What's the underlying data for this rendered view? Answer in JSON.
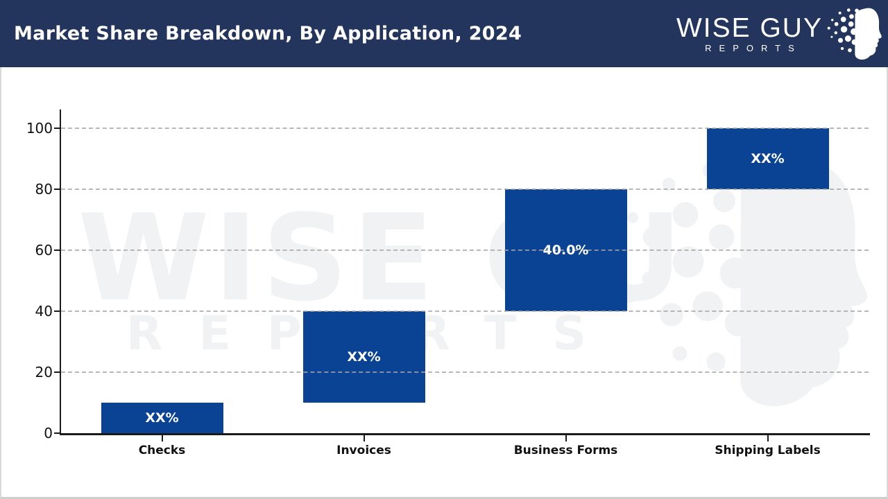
{
  "header": {
    "title": "Market Share Breakdown, By Application, 2024",
    "bg_color": "#23355d",
    "logo": {
      "brand": "WISE GUY",
      "sub": "REPORTS",
      "head_icon": "dotted-face-profile"
    }
  },
  "watermark": {
    "line1": "WISE GU",
    "line2": "REPORTS"
  },
  "chart_data": {
    "type": "bar",
    "subtype": "waterfall",
    "title": "Market Share Breakdown, By Application, 2024",
    "xlabel": "",
    "ylabel": "",
    "categories": [
      "Checks",
      "Invoices",
      "Business Forms",
      "Shipping Labels"
    ],
    "segments": [
      {
        "category": "Checks",
        "start": 0,
        "end": 10,
        "label": "XX%"
      },
      {
        "category": "Invoices",
        "start": 10,
        "end": 40,
        "label": "XX%"
      },
      {
        "category": "Business Forms",
        "start": 40,
        "end": 80,
        "label": "40.0%"
      },
      {
        "category": "Shipping Labels",
        "start": 80,
        "end": 100,
        "label": "XX%"
      }
    ],
    "ylim": [
      0,
      100
    ],
    "yticks": [
      0,
      20,
      40,
      60,
      80,
      100
    ],
    "grid": "horizontal dashed gridlines drawn over bars",
    "legend": "none",
    "bar_color": "#0a4294",
    "bar_label_color": "#ffffff",
    "axis_color": "#1a1a1a"
  }
}
